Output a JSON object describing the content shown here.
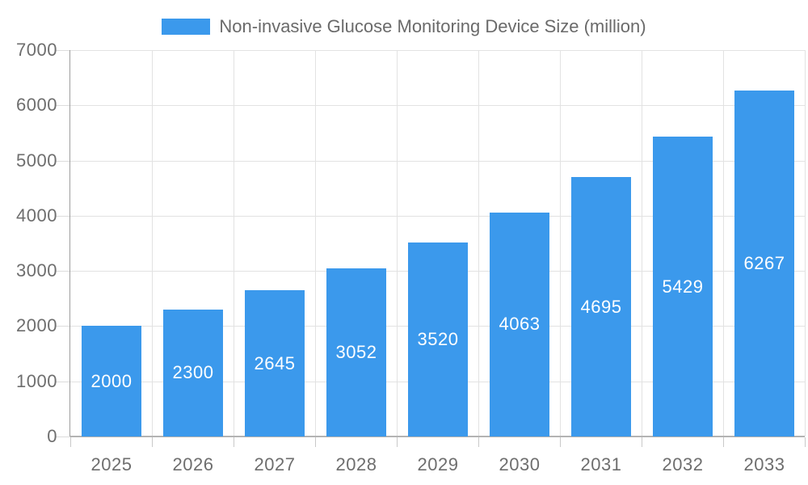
{
  "legend": {
    "label": "Non-invasive Glucose Monitoring Device Size (million)"
  },
  "chart_data": {
    "type": "bar",
    "title": "Non-invasive Glucose Monitoring Device Size (million)",
    "categories": [
      "2025",
      "2026",
      "2027",
      "2028",
      "2029",
      "2030",
      "2031",
      "2032",
      "2033"
    ],
    "series": [
      {
        "name": "Non-invasive Glucose Monitoring Device Size (million)",
        "values": [
          2000,
          2300,
          2645,
          3052,
          3520,
          4063,
          4695,
          5429,
          6267
        ]
      }
    ],
    "value_labels": [
      2000,
      2300,
      2645,
      3052,
      3520,
      4063,
      4695,
      5429,
      6267
    ],
    "value_label_position": "inside-center",
    "xlabel": "",
    "ylabel": "",
    "ylim": [
      0,
      7000
    ],
    "y_tick_interval": 1000,
    "y_tick_labels": [
      "0",
      "1000",
      "2000",
      "3000",
      "4000",
      "5000",
      "6000",
      "7000"
    ],
    "grid": "horizontal-and-vertical",
    "legend_position": "top-center",
    "colors": {
      "bar": "#3B99EC",
      "value_label_text": "#FFFFFF",
      "axis_text": "#6E6E6E",
      "legend_text": "#6A6A6A",
      "gridline": "#E2E2E2",
      "y_axis_line": "#9E9E9E",
      "x_axis_line": "#B3B3B3",
      "y_tick": "#DCDCDC",
      "x_tick": "#C9C9C9",
      "background": "#FFFFFF"
    }
  }
}
